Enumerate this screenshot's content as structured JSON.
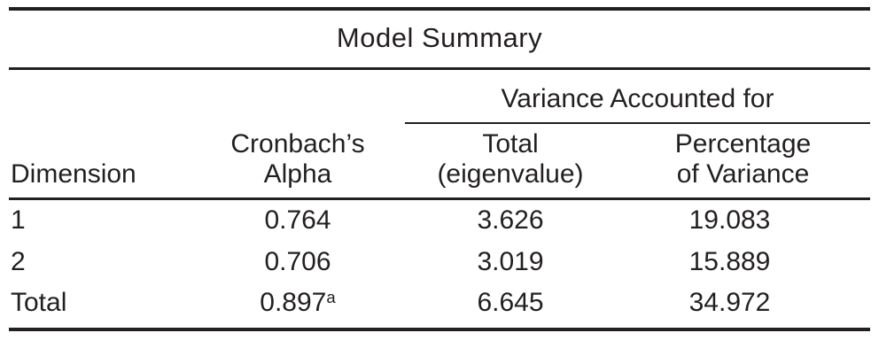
{
  "table": {
    "title": "Model Summary",
    "span_header": "Variance Accounted for",
    "columns": [
      {
        "label": "Dimension"
      },
      {
        "label": "Cronbach’s Alpha",
        "line1": "Cronbach’s",
        "line2": "Alpha"
      },
      {
        "label": "Total (eigenvalue)",
        "line1": "Total",
        "line2": "(eigenvalue)"
      },
      {
        "label": "Percentage of Variance",
        "line1": "Percentage",
        "line2": "of Variance"
      }
    ],
    "rows": [
      {
        "dimension": "1",
        "cronbachs_alpha": "0.764",
        "total_eigenvalue": "3.626",
        "percentage_of_variance": "19.083"
      },
      {
        "dimension": "2",
        "cronbachs_alpha": "0.706",
        "total_eigenvalue": "3.019",
        "percentage_of_variance": "15.889"
      },
      {
        "dimension": "Total",
        "cronbachs_alpha": "0.897",
        "cronbachs_alpha_sup": "a",
        "total_eigenvalue": "6.645",
        "percentage_of_variance": "34.972"
      }
    ],
    "colors": {
      "text": "#231f20",
      "rule": "#231f20",
      "background": "#ffffff"
    }
  }
}
